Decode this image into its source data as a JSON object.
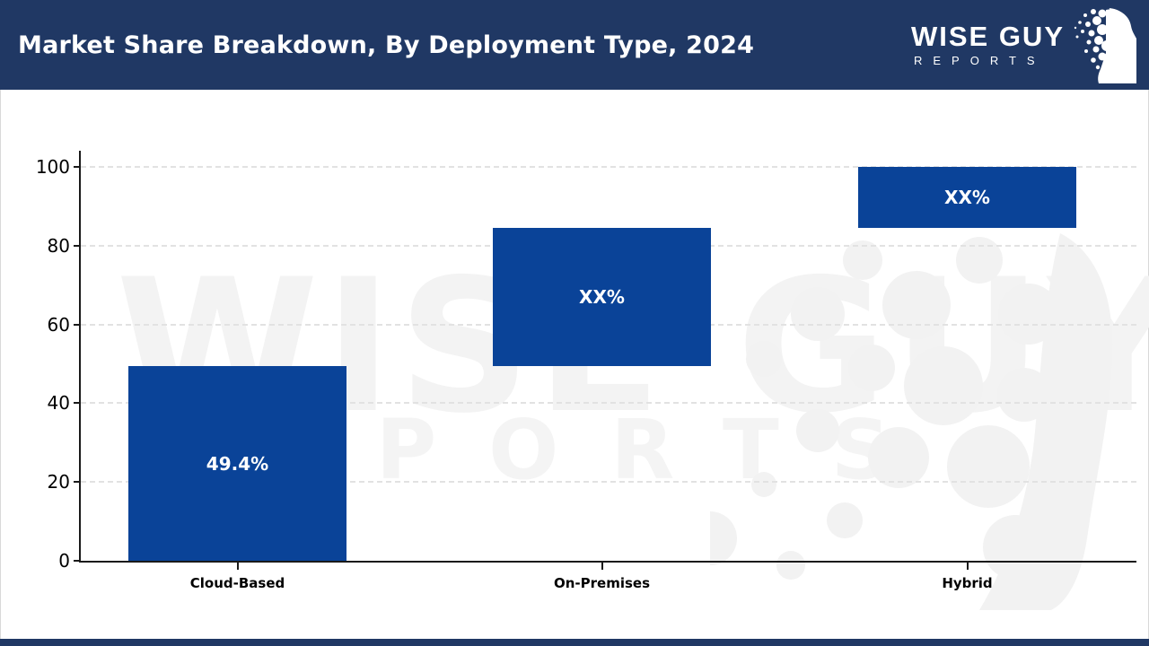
{
  "header": {
    "title": "Market Share Breakdown, By Deployment Type, 2024",
    "logo": {
      "wordmark": "WISE GUY",
      "subtext": "REPORTS"
    },
    "bg_color": "#203864"
  },
  "watermark": {
    "line1": "WISE GUY",
    "line2": "REPORTS"
  },
  "chart_data": {
    "type": "bar",
    "subtype": "waterfall",
    "title": "Market Share Breakdown, By Deployment Type, 2024",
    "categories": [
      "Cloud-Based",
      "On-Premises",
      "Hybrid"
    ],
    "bars": [
      {
        "category": "Cloud-Based",
        "start": 0,
        "end": 49.4,
        "label": "49.4%"
      },
      {
        "category": "On-Premises",
        "start": 49.4,
        "end": 84.5,
        "label": "XX%"
      },
      {
        "category": "Hybrid",
        "start": 84.5,
        "end": 100,
        "label": "XX%"
      }
    ],
    "xlabel": "",
    "ylabel": "",
    "y_ticks": [
      0,
      20,
      40,
      60,
      80,
      100
    ],
    "ylim": [
      0,
      100
    ],
    "grid": "horizontal-dashed",
    "legend": "none",
    "bar_color": "#0a4398",
    "axis_color": "#1a1a1a"
  }
}
